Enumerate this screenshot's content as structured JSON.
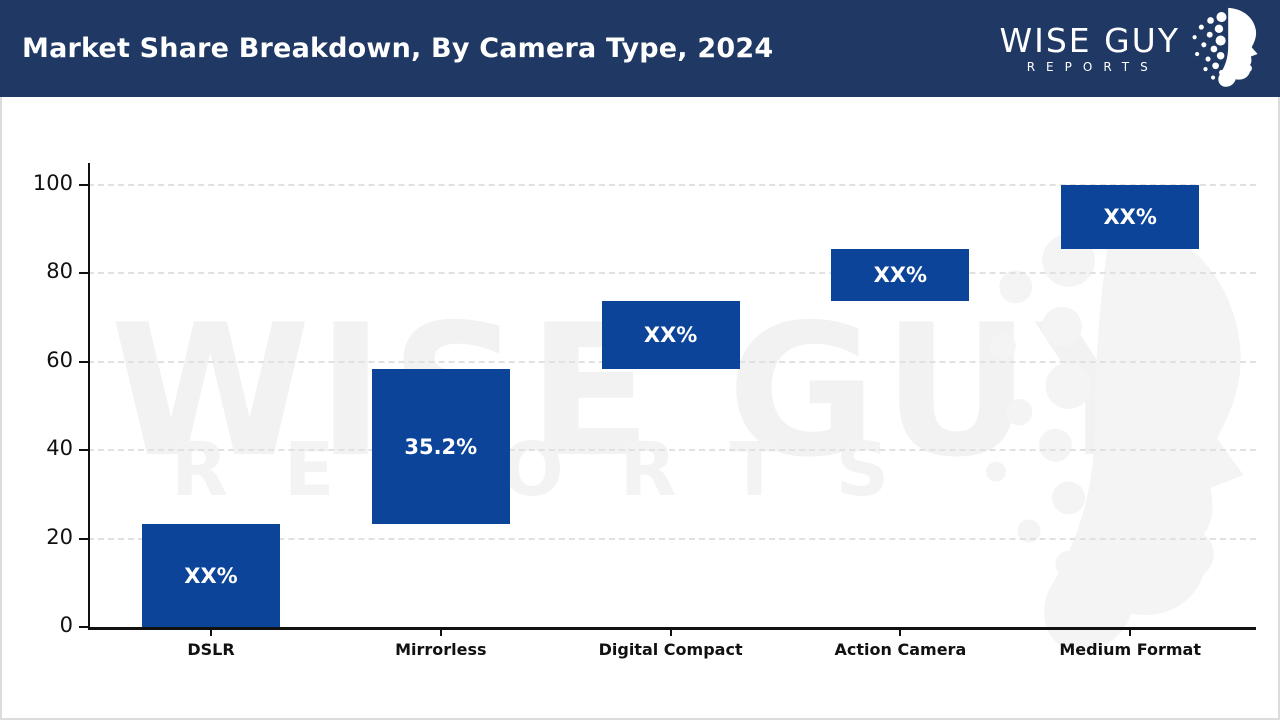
{
  "header": {
    "title": "Market Share Breakdown, By Camera Type, 2024",
    "logo": {
      "line1": "WISE GUY",
      "line2": "REPORTS"
    }
  },
  "watermark": {
    "line1": "WISE GUY",
    "line2": "REPORTS"
  },
  "colors": {
    "header_bg": "#1f3864",
    "bar": "#0b4499",
    "bar_label": "#ffffff",
    "axis": "#111111",
    "gridline": "#e1e1e1",
    "watermark": "#f2f2f2"
  },
  "chart_data": {
    "type": "bar",
    "subtype": "waterfall",
    "title": "Market Share Breakdown, By Camera Type, 2024",
    "categories": [
      "DSLR",
      "Mirrorless",
      "Digital Compact",
      "Action Camera",
      "Medium Format"
    ],
    "segments": [
      {
        "category": "DSLR",
        "start": 0,
        "end": 23.2,
        "value": 23.2,
        "label": "XX%"
      },
      {
        "category": "Mirrorless",
        "start": 23.2,
        "end": 58.4,
        "value": 35.2,
        "label": "35.2%"
      },
      {
        "category": "Digital Compact",
        "start": 58.4,
        "end": 73.8,
        "value": 15.4,
        "label": "XX%"
      },
      {
        "category": "Action Camera",
        "start": 73.8,
        "end": 85.6,
        "value": 11.8,
        "label": "XX%"
      },
      {
        "category": "Medium Format",
        "start": 85.6,
        "end": 100,
        "value": 14.4,
        "label": "XX%"
      }
    ],
    "xlabel": "",
    "ylabel": "",
    "ylim": [
      0,
      100
    ],
    "yticks": [
      0,
      20,
      40,
      60,
      80,
      100
    ],
    "grid": "horizontal-dashed",
    "legend": "none"
  }
}
